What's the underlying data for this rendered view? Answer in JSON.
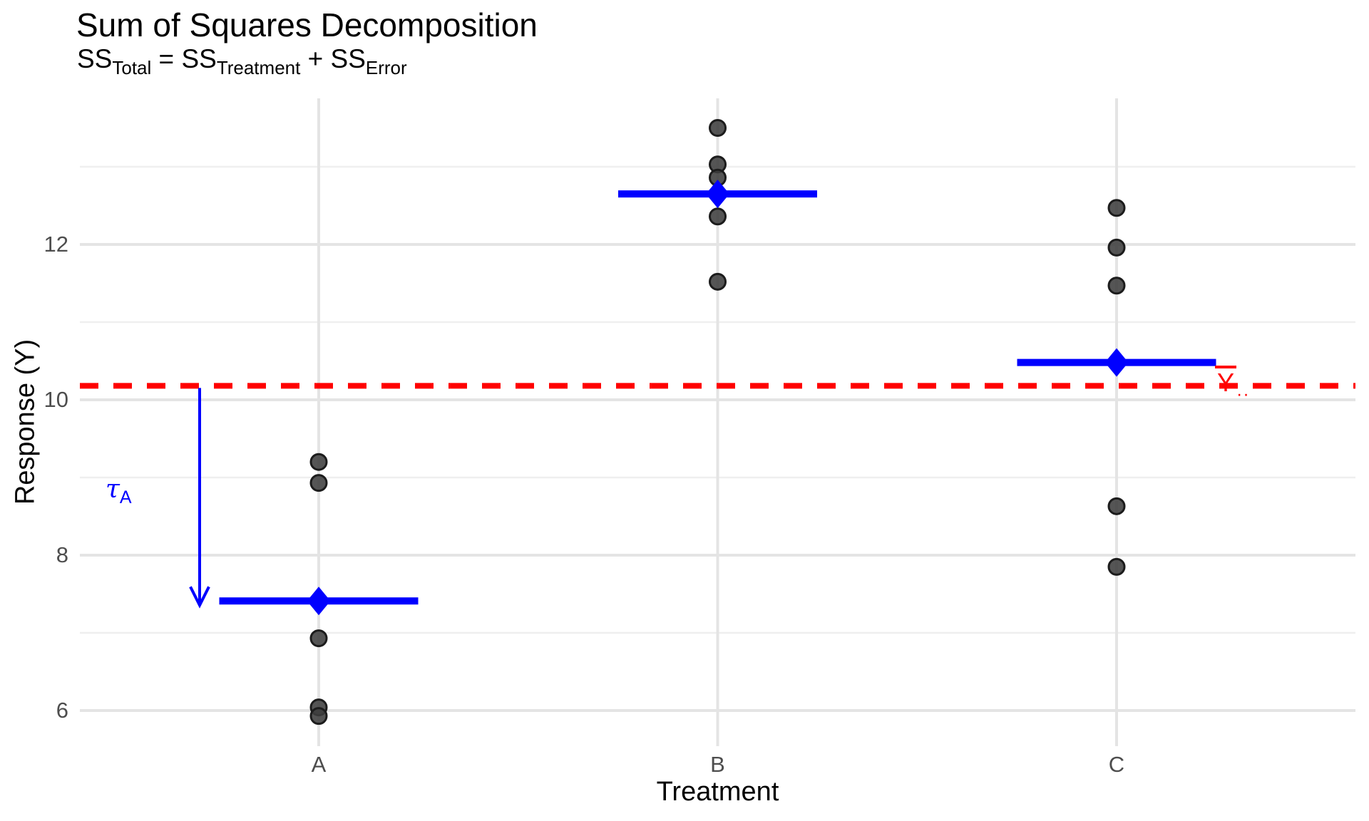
{
  "chart_data": {
    "type": "scatter",
    "title": "Sum of Squares Decomposition",
    "subtitle_parts": [
      {
        "text": "SS"
      },
      {
        "sub": "Total"
      },
      {
        "text": " = SS"
      },
      {
        "sub": "Treatment"
      },
      {
        "text": " + SS"
      },
      {
        "sub": "Error"
      }
    ],
    "xlabel": "Treatment",
    "ylabel": "Response (Y)",
    "categories": [
      "A",
      "B",
      "C"
    ],
    "series": [
      {
        "name": "A",
        "values": [
          9.2,
          8.93,
          6.93,
          6.04,
          5.93
        ],
        "mean": 7.41
      },
      {
        "name": "B",
        "values": [
          13.5,
          13.03,
          12.86,
          12.36,
          11.52
        ],
        "mean": 12.65
      },
      {
        "name": "C",
        "values": [
          12.47,
          11.96,
          11.47,
          8.63,
          7.85
        ],
        "mean": 10.48
      }
    ],
    "grand_mean": 10.18,
    "y_ticks": [
      6,
      8,
      10,
      12
    ],
    "y_minor_ticks": [
      7,
      9,
      11,
      13
    ],
    "ylim": [
      5.55,
      13.88
    ],
    "grid": "on",
    "legend": "none",
    "annotations": {
      "tau": {
        "main": "τ",
        "sub": "A"
      },
      "grand_mean_label": {
        "main": "Y",
        "sub": "··"
      }
    },
    "colors": {
      "group_mean": "#0000ff",
      "grand_mean": "#ff0000",
      "point_fill": "#3e3e3e",
      "point_stroke": "#1c1c1c",
      "grid_major": "#e4e4e4",
      "grid_minor": "#efefef",
      "tick_label": "#4d4d4d",
      "text": "#000000"
    }
  }
}
